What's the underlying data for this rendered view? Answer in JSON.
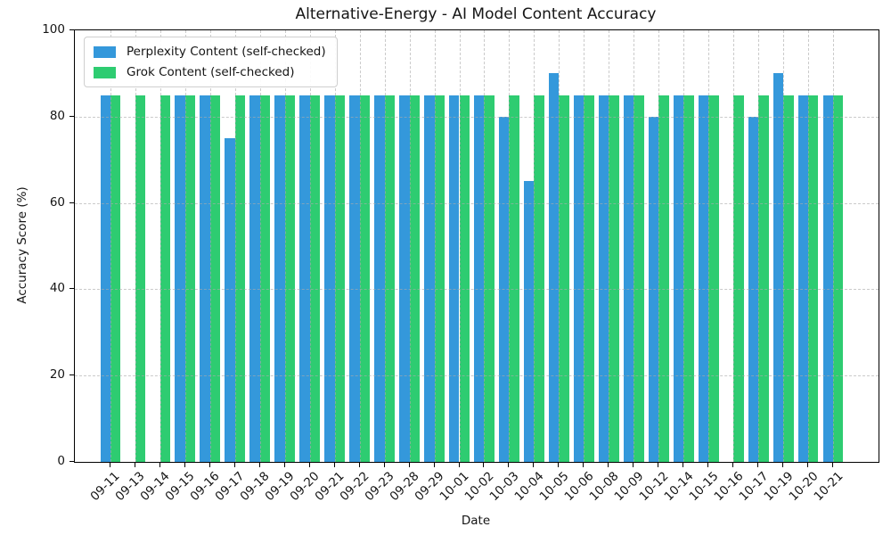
{
  "chart_data": {
    "type": "bar",
    "title": "Alternative-Energy - AI Model Content Accuracy",
    "xlabel": "Date",
    "ylabel": "Accuracy Score (%)",
    "ylim": [
      0,
      100
    ],
    "yticks": [
      0,
      20,
      40,
      60,
      80,
      100
    ],
    "grid": "dashed-both-axes-over-bars",
    "legend_position": "upper-left",
    "categories": [
      "09-11",
      "09-13",
      "09-14",
      "09-15",
      "09-16",
      "09-17",
      "09-18",
      "09-19",
      "09-20",
      "09-21",
      "09-22",
      "09-23",
      "09-28",
      "09-29",
      "10-01",
      "10-02",
      "10-03",
      "10-04",
      "10-05",
      "10-06",
      "10-08",
      "10-09",
      "10-12",
      "10-14",
      "10-15",
      "10-16",
      "10-17",
      "10-19",
      "10-20",
      "10-21"
    ],
    "series": [
      {
        "name": "Perplexity Content (self-checked)",
        "color": "#3498db",
        "values": [
          85,
          null,
          null,
          85,
          85,
          75,
          85,
          85,
          85,
          85,
          85,
          85,
          85,
          85,
          85,
          85,
          80,
          65,
          90,
          85,
          85,
          85,
          80,
          85,
          85,
          null,
          80,
          90,
          85,
          85
        ]
      },
      {
        "name": "Grok Content (self-checked)",
        "color": "#2ecc71",
        "values": [
          85,
          85,
          85,
          85,
          85,
          85,
          85,
          85,
          85,
          85,
          85,
          85,
          85,
          85,
          85,
          85,
          85,
          85,
          85,
          85,
          85,
          85,
          85,
          85,
          85,
          85,
          85,
          85,
          85,
          85
        ]
      }
    ],
    "colors": {
      "grid": "#ababab",
      "axis": "#000000",
      "text": "#151515",
      "background": "#ffffff"
    }
  }
}
